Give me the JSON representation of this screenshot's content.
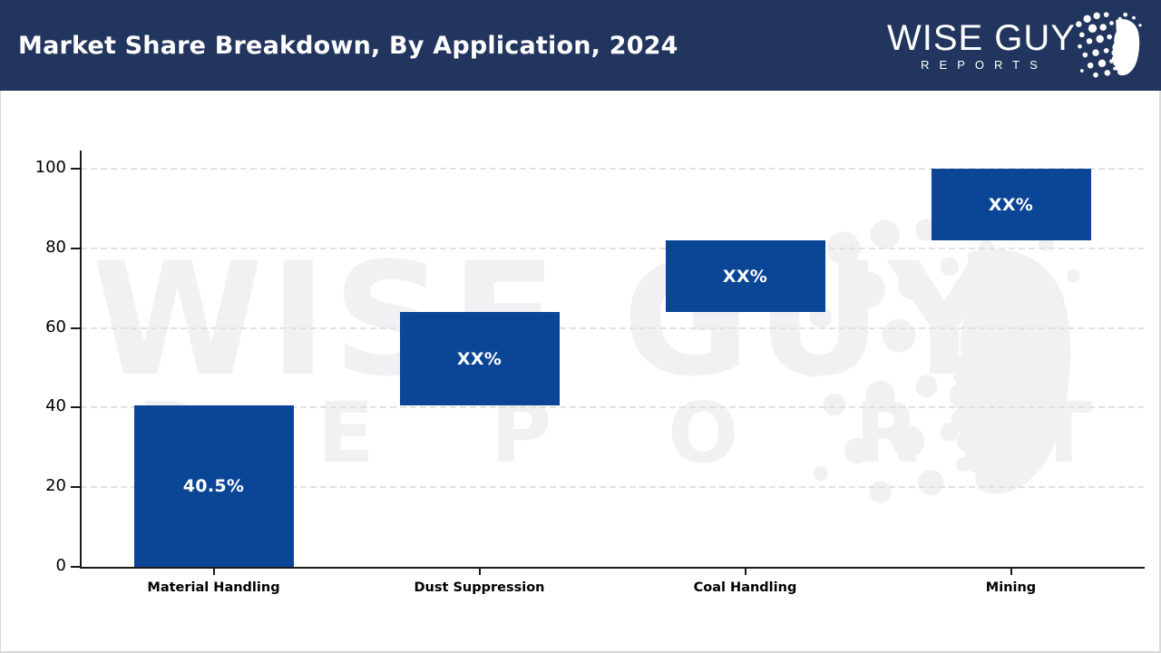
{
  "header": {
    "title": "Market Share Breakdown, By Application, 2024",
    "logo": {
      "line1": "WISE GUY",
      "line2": "REPORTS"
    }
  },
  "watermark": {
    "line1": "WISE GUY",
    "line2": "R E P O R T S"
  },
  "colors": {
    "header_background": "#22355e",
    "bar_fill": "#0a4596",
    "bar_label": "#ffffff",
    "watermark_gray": "#f1f1f3",
    "axis_black": "#1a1a1a",
    "gridline_gray": "#e1e1e1"
  },
  "chart_data": {
    "type": "bar",
    "variant": "waterfall",
    "title": "Market Share Breakdown, By Application, 2024",
    "categories": [
      "Material Handling",
      "Dust Suppression",
      "Coal Handling",
      "Mining"
    ],
    "segments": [
      {
        "category": "Material Handling",
        "start": 0,
        "end": 40.5,
        "label": "40.5%"
      },
      {
        "category": "Dust Suppression",
        "start": 40.5,
        "end": 64,
        "label": "XX%"
      },
      {
        "category": "Coal Handling",
        "start": 64,
        "end": 82,
        "label": "XX%"
      },
      {
        "category": "Mining",
        "start": 82,
        "end": 100,
        "label": "XX%"
      }
    ],
    "xlabel": "",
    "ylabel": "",
    "ylim": [
      0,
      100
    ],
    "yticks": [
      0,
      20,
      40,
      60,
      80,
      100
    ],
    "grid": "horizontal-dashed",
    "legend": "none"
  }
}
